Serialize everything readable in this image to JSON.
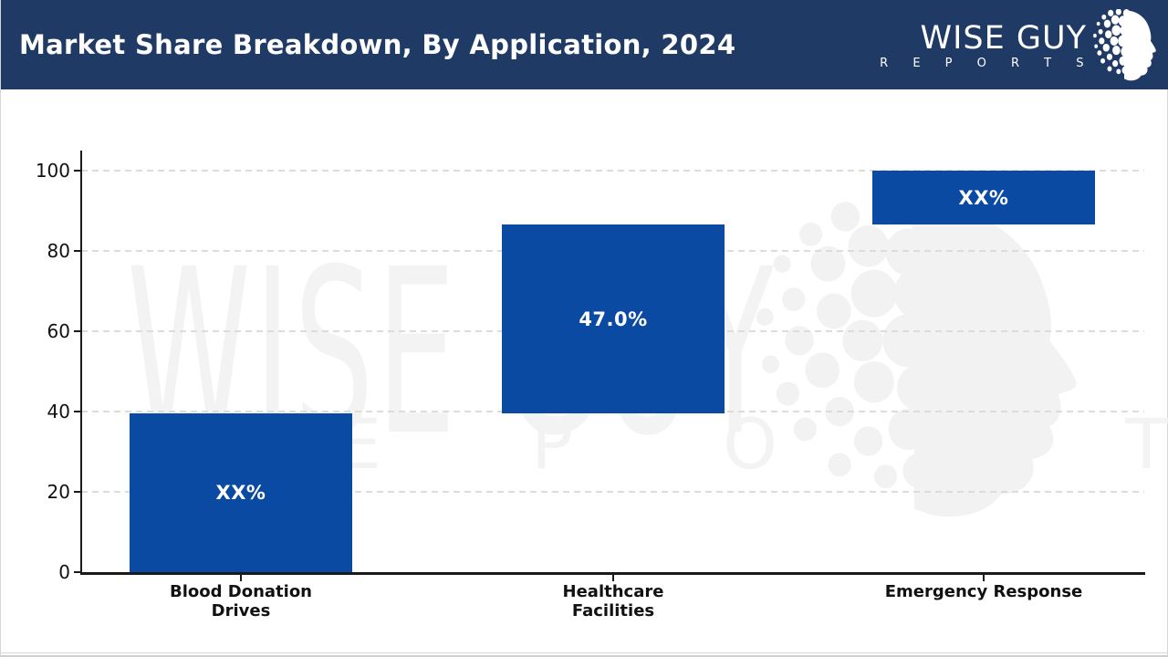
{
  "header": {
    "title": "Market Share Breakdown, By Application, 2024",
    "bg_color": "#203a66",
    "logo": {
      "line1": "WISE GUY",
      "line2": "R E P O R T S"
    }
  },
  "watermark": {
    "line1": "WISE GUY",
    "line2": "R E P O R T S"
  },
  "chart_data": {
    "type": "bar",
    "subtype": "waterfall",
    "title": "Market Share Breakdown, By Application, 2024",
    "categories": [
      [
        "Blood Donation",
        "Drives"
      ],
      [
        "Healthcare",
        "Facilities"
      ],
      [
        "Emergency Response"
      ]
    ],
    "segments": [
      {
        "category": "Blood Donation Drives",
        "start": 0,
        "end": 39.5,
        "plotted_value": 39.5,
        "label": "XX%"
      },
      {
        "category": "Healthcare Facilities",
        "start": 39.5,
        "end": 86.5,
        "plotted_value": 47.0,
        "label": "47.0%"
      },
      {
        "category": "Emergency Response",
        "start": 86.5,
        "end": 100,
        "plotted_value": 13.5,
        "label": "XX%"
      }
    ],
    "ylim": [
      0,
      100
    ],
    "yticks": [
      0,
      20,
      40,
      60,
      80,
      100
    ],
    "xlabel": "",
    "ylabel": "",
    "grid": "horizontal-dashed",
    "legend": "none",
    "bar_color": "#0b4aa3",
    "bar_label_color": "#ffffff",
    "gridline_color": "#dcdcdc",
    "axis_color": "#1a1a1a"
  }
}
